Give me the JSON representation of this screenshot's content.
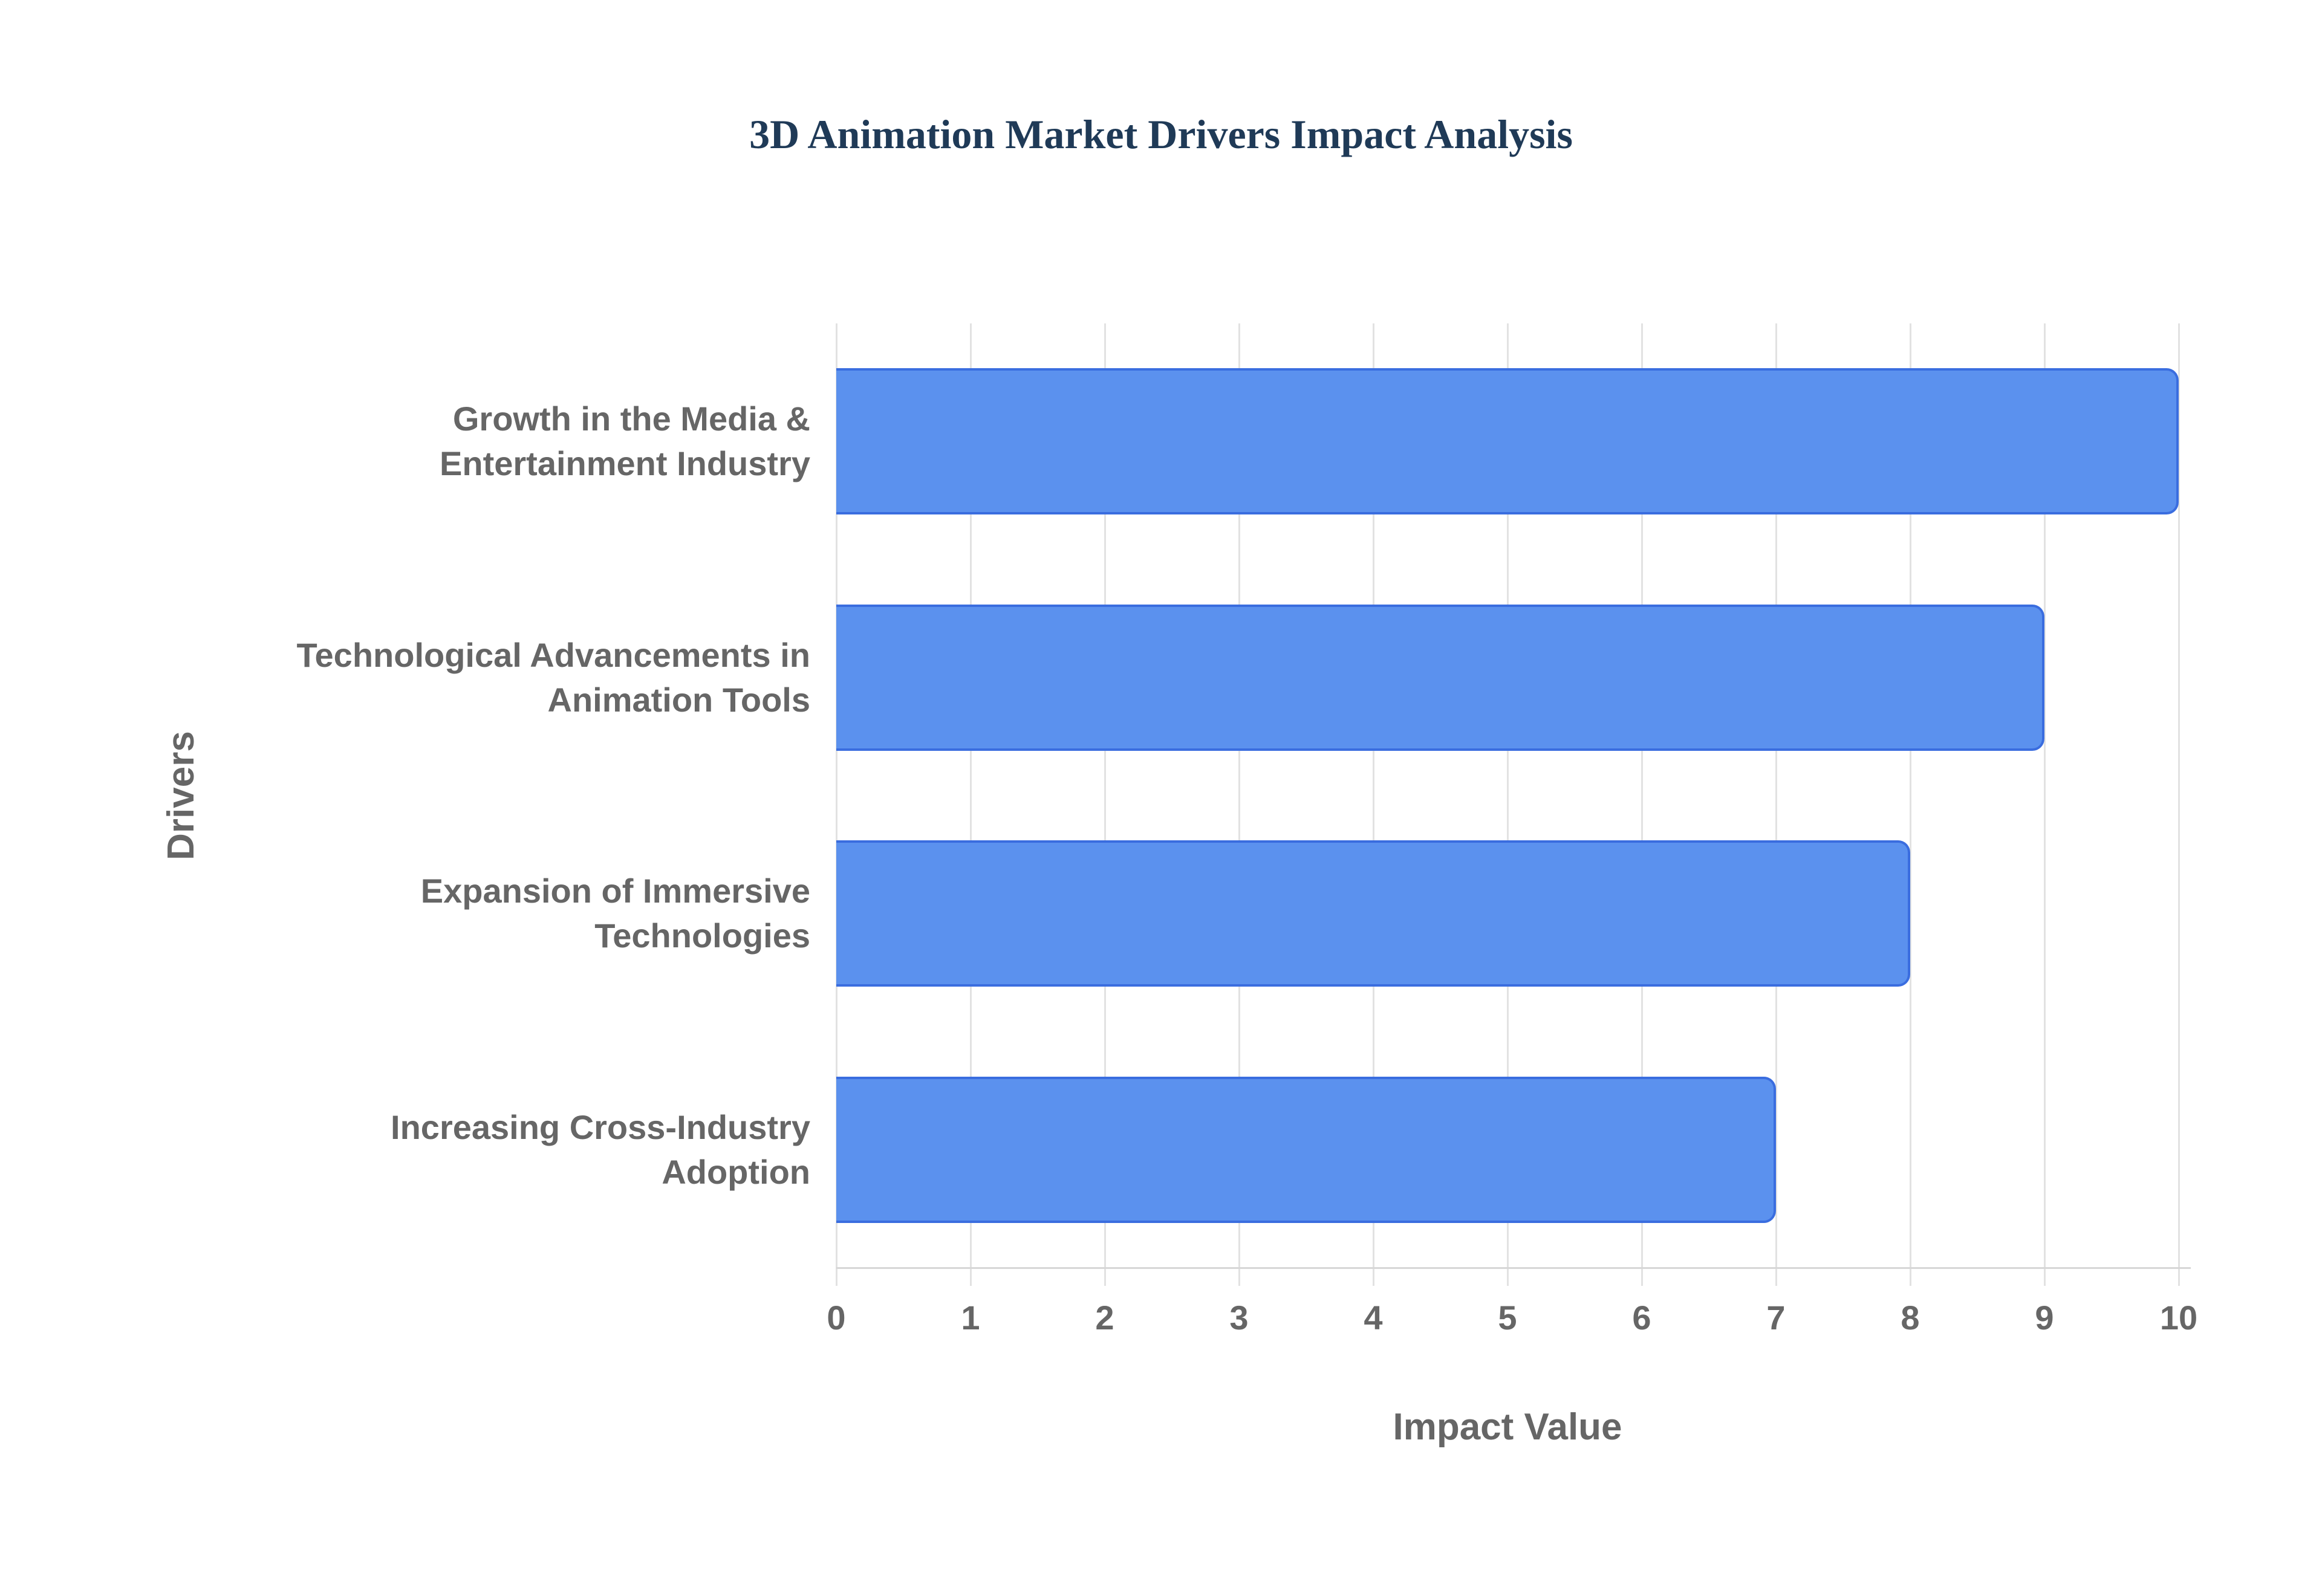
{
  "title": "3D Animation Market Drivers Impact Analysis",
  "colors": {
    "title": "#1f3a57",
    "text": "#666666",
    "grid": "#e2e2e2",
    "axis_line": "#d7d7d7",
    "bar_fill": "#5b91ee",
    "bar_border": "#3a6ddf",
    "background": "#ffffff"
  },
  "chart_data": {
    "type": "bar",
    "orientation": "horizontal",
    "title": "3D Animation Market Drivers Impact Analysis",
    "categories": [
      "Growth in the Media &\nEntertainment Industry",
      "Technological Advancements in\nAnimation Tools",
      "Expansion of Immersive\nTechnologies",
      "Increasing Cross-Industry\nAdoption"
    ],
    "values": [
      10,
      9,
      8,
      7
    ],
    "xlabel": "Impact Value",
    "ylabel": "Drivers",
    "xlim": [
      0,
      10
    ],
    "xticks": [
      0,
      1,
      2,
      3,
      4,
      5,
      6,
      7,
      8,
      9,
      10
    ],
    "grid": "vertical",
    "legend": false,
    "bar_thickness_ratio": 0.62
  }
}
